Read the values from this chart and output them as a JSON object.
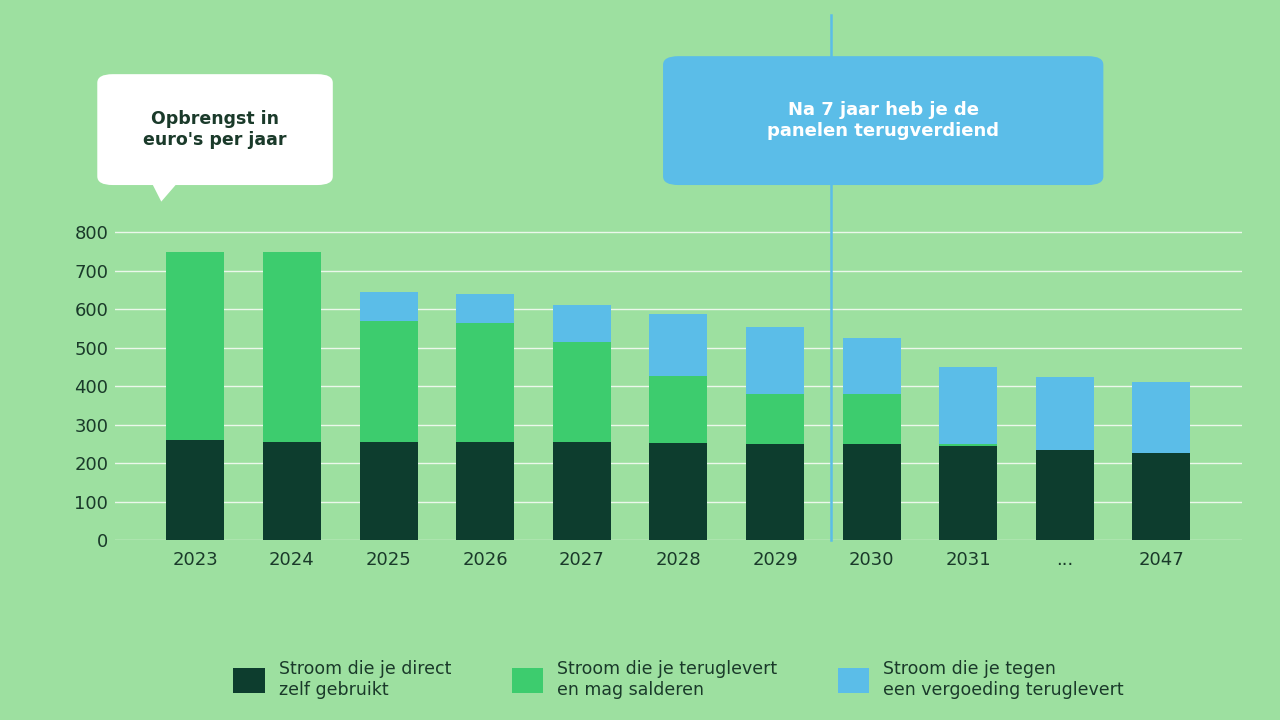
{
  "categories": [
    "2023",
    "2024",
    "2025",
    "2026",
    "2027",
    "2028",
    "2029",
    "2030",
    "2031",
    "...",
    "2047"
  ],
  "dark_green": [
    260,
    255,
    255,
    255,
    255,
    252,
    250,
    250,
    245,
    235,
    225
  ],
  "bright_green": [
    490,
    495,
    315,
    310,
    260,
    175,
    130,
    130,
    5,
    0,
    0
  ],
  "blue": [
    0,
    0,
    75,
    75,
    95,
    160,
    175,
    145,
    200,
    190,
    185
  ],
  "bg_color": "#9de0a0",
  "dark_green_color": "#0d3d2e",
  "bright_green_color": "#3dcc6e",
  "blue_color": "#5bbde8",
  "annotation_text": "Na 7 jaar heb je de\npanelen terugverdiend",
  "ylabel_box_text": "Opbrengst in\neuro's per jaar",
  "legend1": "Stroom die je direct\nzelf gebruikt",
  "legend2": "Stroom die je teruglevert\nen mag salderen",
  "legend3": "Stroom die je tegen\neen vergoeding teruglevert",
  "ylim": [
    0,
    880
  ],
  "yticks": [
    0,
    100,
    200,
    300,
    400,
    500,
    600,
    700,
    800
  ]
}
